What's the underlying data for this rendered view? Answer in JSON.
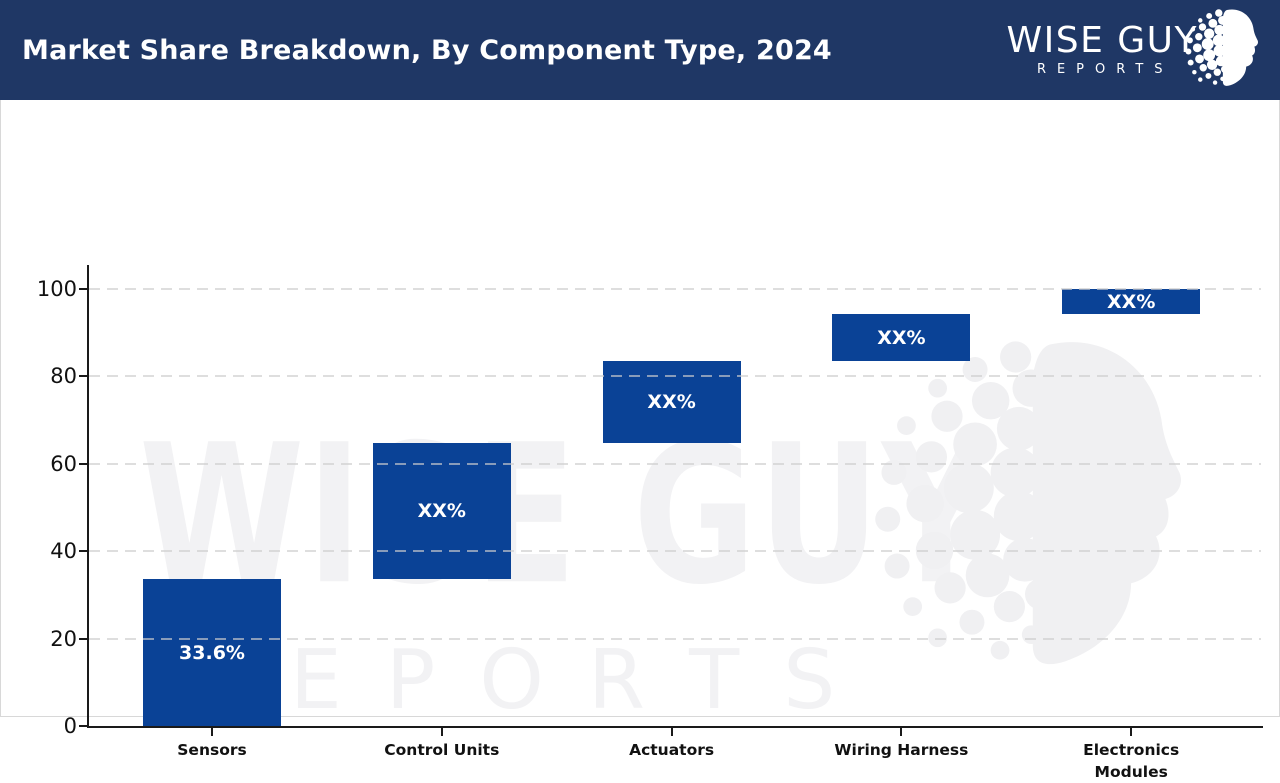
{
  "header": {
    "title": "Market Share Breakdown, By Component Type, 2024",
    "background": "#1f3765",
    "logo": {
      "wordmark": "WISE GUY",
      "subtext": "REPORTS"
    }
  },
  "watermark": {
    "wordmark": "WISE GUY",
    "subtext": "R E P O R T S"
  },
  "chart_data": {
    "type": "bar",
    "subtype": "waterfall",
    "title": "Market Share Breakdown, By Component Type, 2024",
    "categories": [
      "Sensors",
      "Control Units",
      "Actuators",
      "Wiring Harness",
      "Electronics\nModules"
    ],
    "segments": [
      {
        "category": "Sensors",
        "start": 0,
        "end": 33.6,
        "label": "33.6%"
      },
      {
        "category": "Control Units",
        "start": 33.6,
        "end": 64.8,
        "label": "XX%"
      },
      {
        "category": "Actuators",
        "start": 64.8,
        "end": 83.5,
        "label": "XX%"
      },
      {
        "category": "Wiring Harness",
        "start": 83.5,
        "end": 94.1,
        "label": "XX%"
      },
      {
        "category": "Electronics Modules",
        "start": 94.1,
        "end": 99.9,
        "label": "XX%"
      }
    ],
    "y_ticks": [
      0,
      20,
      40,
      60,
      80,
      100
    ],
    "ylim": [
      0,
      105
    ],
    "xlabel": "",
    "ylabel": "",
    "grid": true,
    "legend": false,
    "bar_color": "#0a4296",
    "bar_label_color": "#ffffff",
    "axis_color": "#1a1a1a",
    "grid_color": "#d9d9d9"
  }
}
